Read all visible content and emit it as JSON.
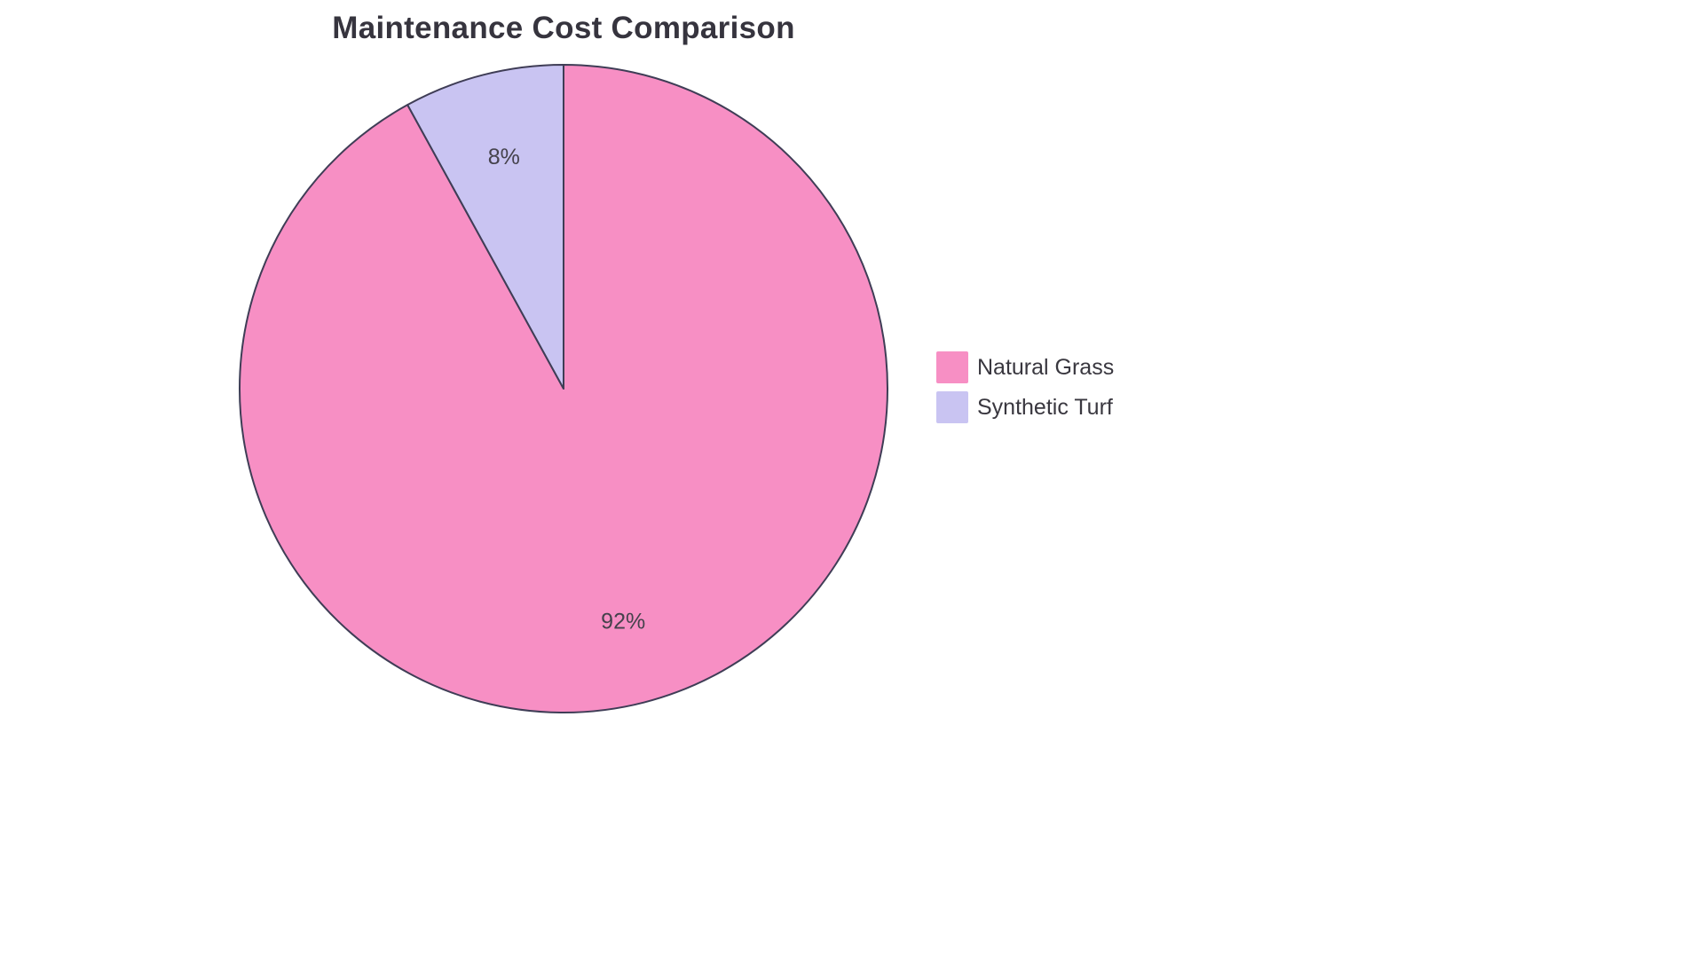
{
  "chart_data": {
    "type": "pie",
    "title": "Maintenance Cost Comparison",
    "labels": [
      "Natural Grass",
      "Synthetic Turf"
    ],
    "values": [
      92,
      8
    ],
    "slice_labels": [
      "92%",
      "8%"
    ],
    "colors": [
      "#F78FC4",
      "#C9C4F2"
    ],
    "stroke_color": "#3F3D56",
    "label_color": "#45424C",
    "background": "#FFFFFF",
    "legend_position": "right",
    "start_angle": "top",
    "direction": "clockwise"
  }
}
